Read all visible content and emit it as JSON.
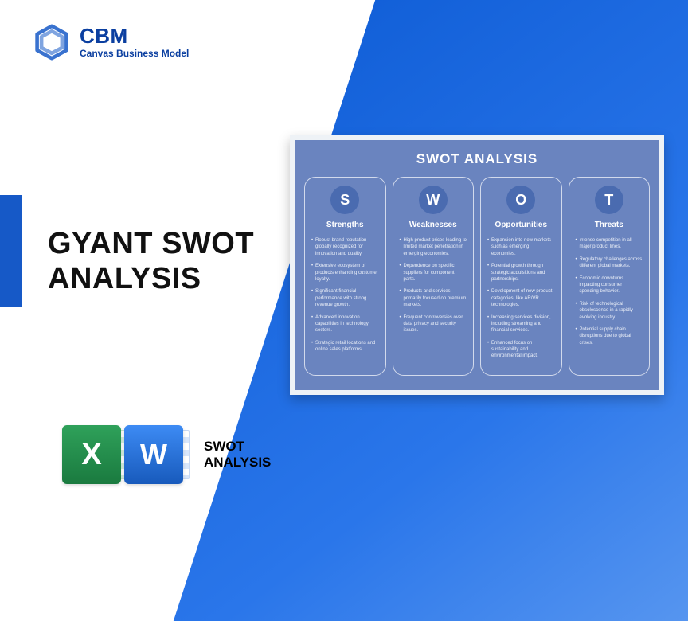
{
  "brand": {
    "name": "CBM",
    "subtitle": "Canvas Business Model",
    "color": "#0b3fa0"
  },
  "title": {
    "line1": "GYANT SWOT",
    "line2": "ANALYSIS"
  },
  "iconLabel": {
    "line1": "SWOT",
    "line2": "ANALYSIS"
  },
  "diagonal_gradient": [
    "#0f5dd6",
    "#2a76ea",
    "#5a98f0"
  ],
  "accent_bar_color": "#1659c7",
  "swot": {
    "title": "SWOT ANALYSIS",
    "card_bg": "#6a84bf",
    "circle_bg": "#4a6bb0",
    "border_color": "#eef2f6",
    "columns": [
      {
        "letter": "S",
        "heading": "Strengths",
        "items": [
          "Robust brand reputation globally recognized for innovation and quality.",
          "Extensive ecosystem of products enhancing customer loyalty.",
          "Significant financial performance with strong revenue growth.",
          "Advanced innovation capabilities in technology sectors.",
          "Strategic retail locations and online sales platforms."
        ]
      },
      {
        "letter": "W",
        "heading": "Weaknesses",
        "items": [
          "High product prices leading to limited market penetration in emerging economies.",
          "Dependence on specific suppliers for component parts.",
          "Products and services primarily focused on premium markets.",
          "Frequent controversies over data privacy and security issues."
        ]
      },
      {
        "letter": "O",
        "heading": "Opportunities",
        "items": [
          "Expansion into new markets such as emerging economies.",
          "Potential growth through strategic acquisitions and partnerships.",
          "Development of new product categories, like AR/VR technologies.",
          "Increasing services division, including streaming and financial services.",
          "Enhanced focus on sustainability and environmental impact."
        ]
      },
      {
        "letter": "T",
        "heading": "Threats",
        "items": [
          "Intense competition in all major product lines.",
          "Regulatory challenges across different global markets.",
          "Economic downturns impacting consumer spending behavior.",
          "Risk of technological obsolescence in a rapidly evolving industry.",
          "Potential supply chain disruptions due to global crises."
        ]
      }
    ]
  }
}
